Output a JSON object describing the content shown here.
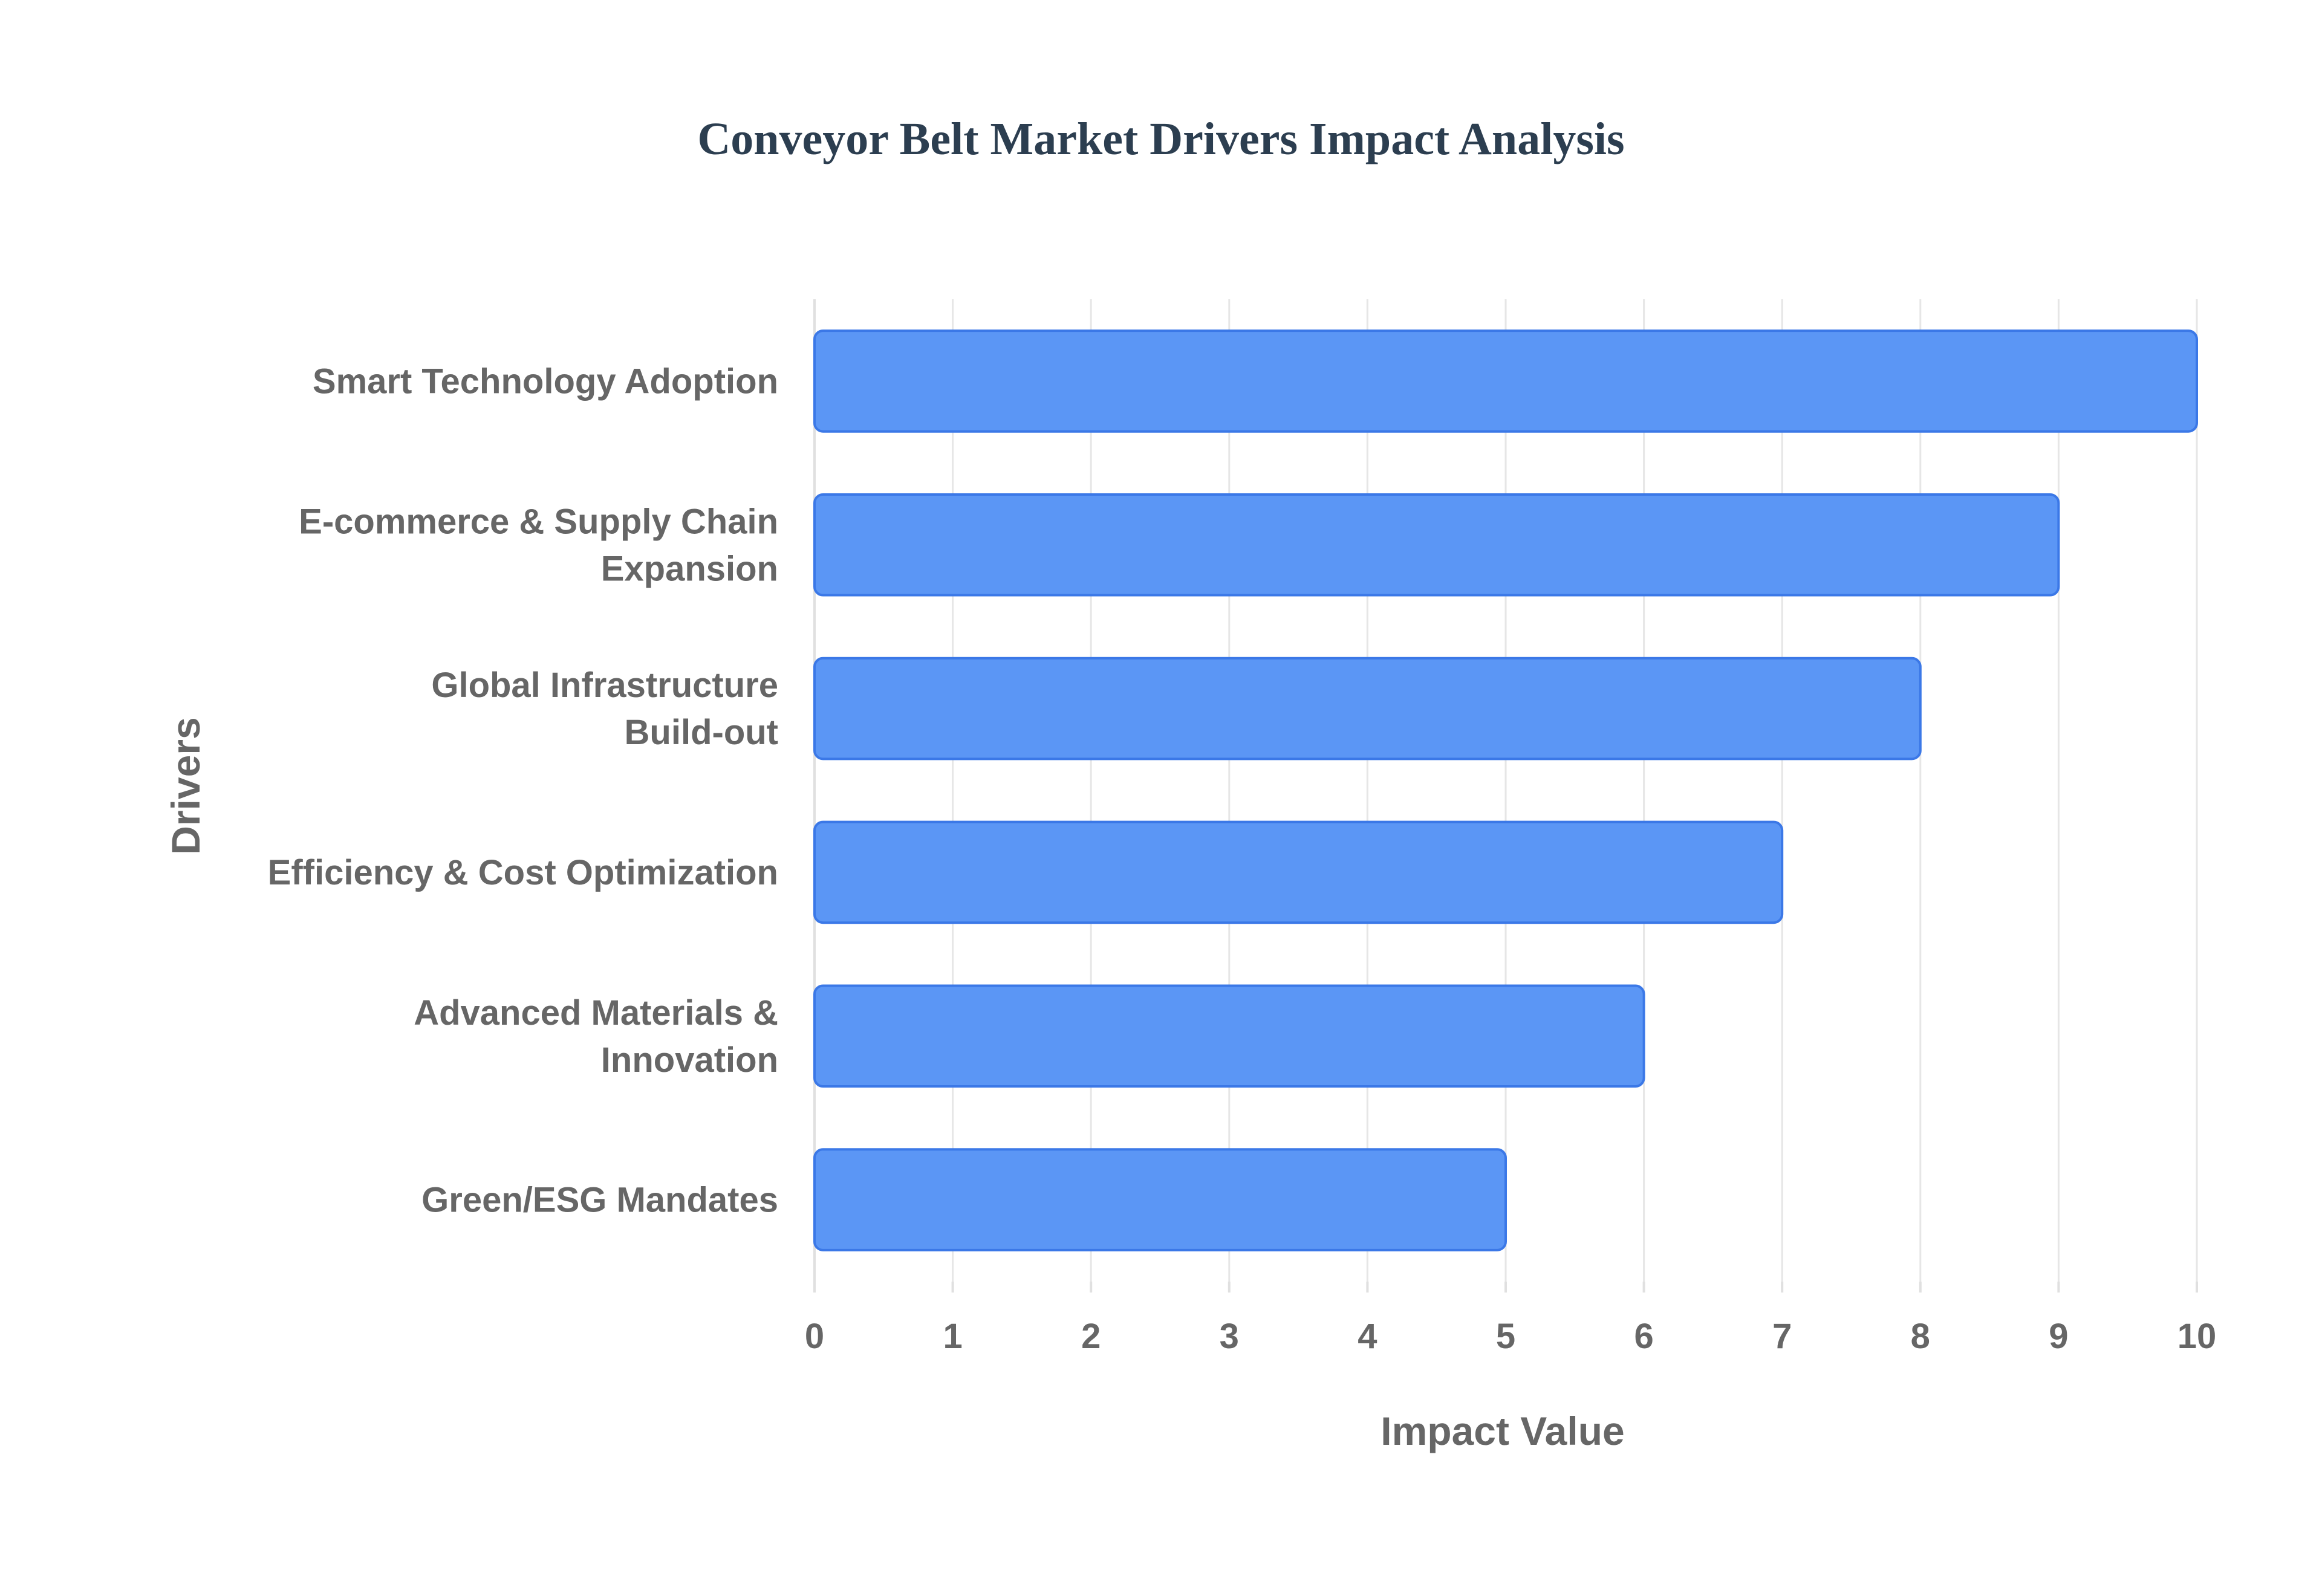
{
  "chart_data": {
    "type": "bar",
    "orientation": "horizontal",
    "title": "Conveyor Belt Market Drivers Impact Analysis",
    "xlabel": "Impact Value",
    "ylabel": "Drivers",
    "categories": [
      [
        "Smart Technology Adoption"
      ],
      [
        "E-commerce & Supply Chain",
        "Expansion"
      ],
      [
        "Global Infrastructure",
        "Build-out"
      ],
      [
        "Efficiency & Cost Optimization"
      ],
      [
        "Advanced Materials &",
        "Innovation"
      ],
      [
        "Green/ESG Mandates"
      ]
    ],
    "values": [
      10,
      9,
      8,
      7,
      6,
      5
    ],
    "xlim": [
      0,
      10
    ],
    "xticks": [
      "0",
      "1",
      "2",
      "3",
      "4",
      "5",
      "6",
      "7",
      "8",
      "9",
      "10"
    ],
    "grid": true,
    "legend": "none",
    "colors": {
      "bar_fill": "#5b96f5",
      "bar_stroke": "#3b78e7",
      "title": "#2c3e50",
      "text": "#666666",
      "grid": "#e6e6e6"
    }
  }
}
